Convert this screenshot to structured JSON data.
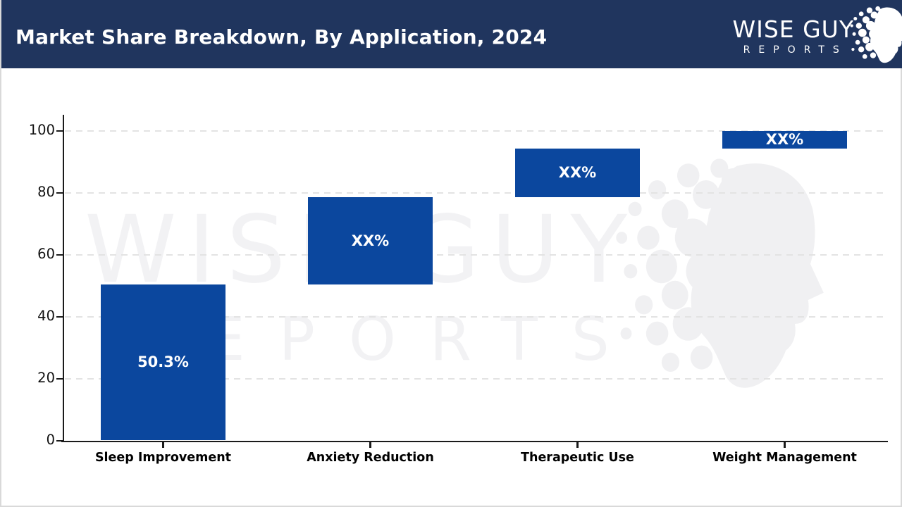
{
  "header": {
    "title": "Market Share Breakdown, By Application, 2024",
    "brand": {
      "line1": "WISE GUY",
      "line2": "REPORTS"
    }
  },
  "watermark": {
    "line1": "WISE GUY",
    "line2": "REPORTS"
  },
  "chart_data": {
    "type": "bar",
    "subtype": "waterfall",
    "title": "Market Share Breakdown, By Application, 2024",
    "categories": [
      "Sleep Improvement",
      "Anxiety Reduction",
      "Therapeutic Use",
      "Weight Management"
    ],
    "segments": [
      {
        "category": "Sleep Improvement",
        "start": 0,
        "end": 50.3,
        "label": "50.3%"
      },
      {
        "category": "Anxiety Reduction",
        "start": 50.3,
        "end": 78.6,
        "label": "XX%"
      },
      {
        "category": "Therapeutic Use",
        "start": 78.6,
        "end": 94.4,
        "label": "XX%"
      },
      {
        "category": "Weight Management",
        "start": 94.4,
        "end": 100,
        "label": "XX%"
      }
    ],
    "yticks": [
      0,
      20,
      40,
      60,
      80,
      100
    ],
    "ylim": [
      0,
      105
    ],
    "xlabel": "",
    "ylabel": "",
    "grid": "dashed-horizontal",
    "legend": "none",
    "bar_color": "#0b479e",
    "bar_label_color": "#ffffff"
  },
  "colors": {
    "header_bg": "#20355e",
    "bar": "#0b479e",
    "grid": "#e3e3e3",
    "axis": "#1a1a1a",
    "watermark": "#f2f2f4"
  }
}
